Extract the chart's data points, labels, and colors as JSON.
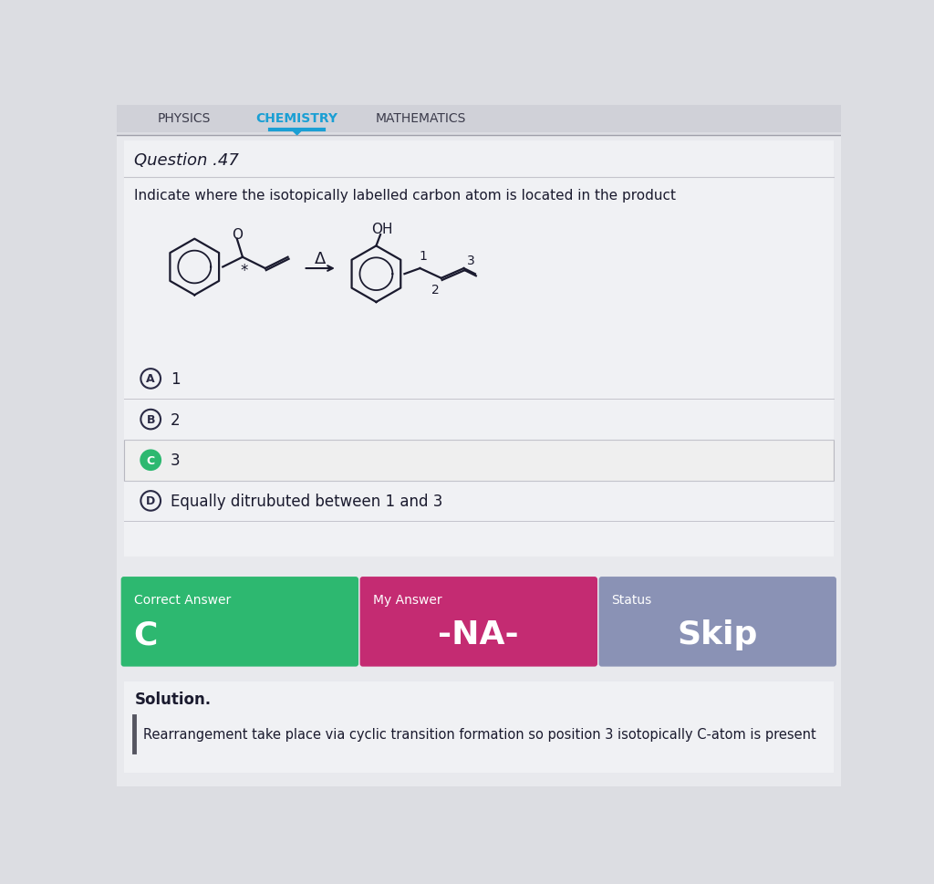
{
  "bg_color": "#dcdde2",
  "tab_bar_color": "#d0d1d8",
  "content_bg": "#e8e9ed",
  "white_panel": "#f0f1f4",
  "title_tabs": [
    "PHYSICS",
    "CHEMISTRY",
    "MATHEMATICS"
  ],
  "active_tab": "CHEMISTRY",
  "active_tab_color": "#1a9fd4",
  "inactive_tab_color": "#3a3a4a",
  "question_number": "Question .47",
  "question_text": "Indicate where the isotopically labelled carbon atom is located in the product",
  "options": [
    {
      "label": "A",
      "text": "1",
      "selected": false
    },
    {
      "label": "B",
      "text": "2",
      "selected": false
    },
    {
      "label": "C",
      "text": "3",
      "selected": true
    },
    {
      "label": "D",
      "text": "Equally ditrubuted between 1 and 3",
      "selected": false
    }
  ],
  "correct_answer_label": "Correct Answer",
  "correct_answer_value": "C",
  "correct_answer_color": "#2db870",
  "my_answer_label": "My Answer",
  "my_answer_value": "-NA-",
  "my_answer_color": "#c42b72",
  "status_label": "Status",
  "status_value": "Skip",
  "status_color": "#8a92b5",
  "solution_title": "Solution.",
  "solution_text": "Rearrangement take place via cyclic transition formation so position 3 isotopically C-atom is present",
  "tab_underline_color": "#1a9fd4",
  "separator_color": "#c4c4cc",
  "option_c_bg": "#efefef",
  "circle_color_normal": "#2a2a45",
  "circle_color_selected": "#2db870",
  "struct_color": "#1a1a2e"
}
